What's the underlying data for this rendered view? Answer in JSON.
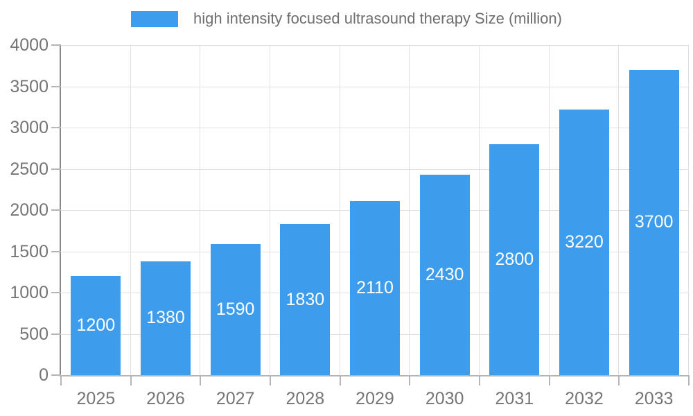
{
  "legend": {
    "label": "high intensity focused ultrasound therapy Size (million)"
  },
  "chart_data": {
    "type": "bar",
    "title": "high intensity focused ultrasound therapy Size (million)",
    "categories": [
      "2025",
      "2026",
      "2027",
      "2028",
      "2029",
      "2030",
      "2031",
      "2032",
      "2033"
    ],
    "values": [
      1200,
      1380,
      1590,
      1830,
      2110,
      2430,
      2800,
      3220,
      3700
    ],
    "xlabel": "",
    "ylabel": "",
    "ylim": [
      0,
      4000
    ],
    "yticks": [
      0,
      500,
      1000,
      1500,
      2000,
      2500,
      3000,
      3500,
      4000
    ],
    "bar_value_labels": "inside-center",
    "grid": true,
    "legend_position": "top-center"
  },
  "colors": {
    "bar": "#3d9cec",
    "bar_label": "#ffffff",
    "grid_line": "#e0e0e0",
    "axis_line_left": "#878787",
    "axis_line_bottom": "#b5b5b5",
    "tick": "#b5b5b5",
    "axis_label_text": "#757575",
    "legend_text": "#6e6e6e",
    "background": "#ffffff"
  }
}
